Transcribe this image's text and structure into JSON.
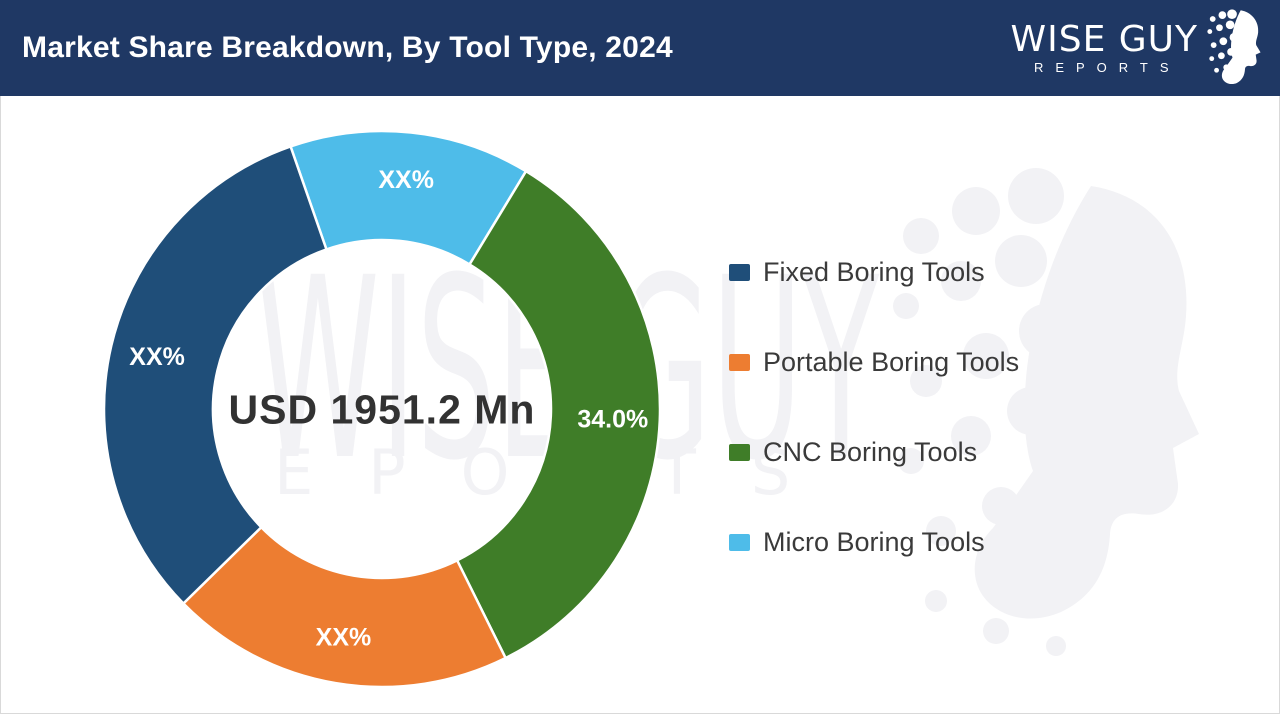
{
  "header": {
    "title": "Market Share Breakdown, By Tool Type, 2024",
    "logo": {
      "line1": "WISE GUY",
      "line2": "REPORTS"
    }
  },
  "watermark": {
    "line1": "WISE GUY",
    "line2": "REPORTS"
  },
  "chart_data": {
    "type": "pie",
    "subtype": "donut",
    "title": "Market Share Breakdown, By Tool Type, 2024",
    "center_label": "USD 1951.2 Mn",
    "start_angle_deg_clockwise_from_top": -19.2,
    "inner_radius_ratio": 0.61,
    "segments": [
      {
        "label": "Micro Boring Tools",
        "value_pct": 14,
        "display_label": "XX%",
        "color": "#4ebce9"
      },
      {
        "label": "CNC Boring Tools",
        "value_pct": 34,
        "display_label": "34.0%",
        "color": "#3f7d28"
      },
      {
        "label": "Portable Boring Tools",
        "value_pct": 20,
        "display_label": "XX%",
        "color": "#ed7d31"
      },
      {
        "label": "Fixed Boring Tools",
        "value_pct": 32,
        "display_label": "XX%",
        "color": "#1f4e79"
      }
    ],
    "legend_position": "right"
  },
  "legend": {
    "items": [
      {
        "label": "Fixed Boring Tools",
        "color": "#1f4e79"
      },
      {
        "label": "Portable Boring Tools",
        "color": "#ed7d31"
      },
      {
        "label": "CNC Boring Tools",
        "color": "#3f7d28"
      },
      {
        "label": "Micro Boring Tools",
        "color": "#4ebce9"
      }
    ]
  },
  "colors": {
    "header_bg": "#1f3864",
    "hairline": "#d9d9d9",
    "center_text": "#323232",
    "legend_text": "#3a3a3a",
    "watermark": "#f2f2f5"
  }
}
